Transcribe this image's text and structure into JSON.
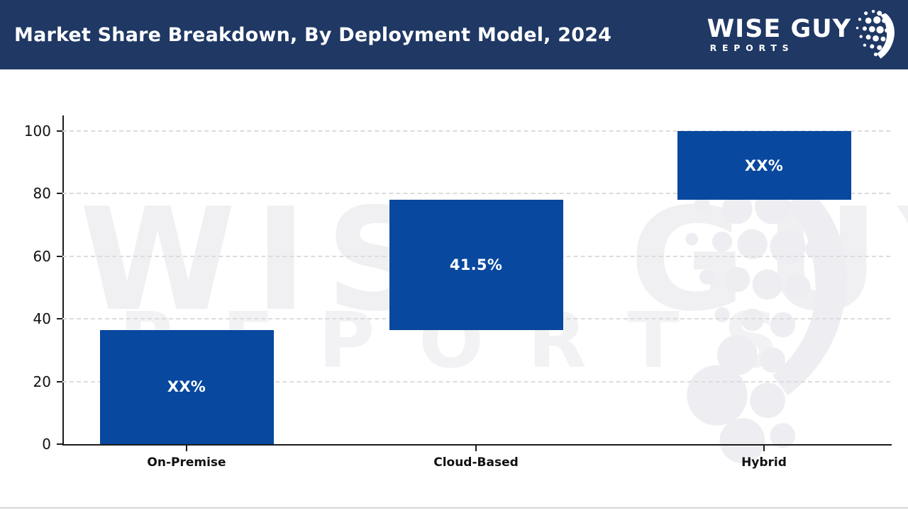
{
  "header": {
    "title": "Market Share Breakdown, By Deployment Model, 2024",
    "bg_color": "#1f3864",
    "brand": {
      "name": "WISE GUY",
      "sub": "REPORTS"
    }
  },
  "watermark": {
    "line1": "WISE GUY",
    "line2": "REPORTS"
  },
  "chart_data": {
    "type": "bar",
    "subtype": "waterfall",
    "title": "Market Share Breakdown, By Deployment Model, 2024",
    "categories": [
      "On-Premise",
      "Cloud-Based",
      "Hybrid"
    ],
    "series": [
      {
        "name": "Market share (%)",
        "segments": [
          {
            "category": "On-Premise",
            "start": 0,
            "end": 36.5,
            "label": "XX%"
          },
          {
            "category": "Cloud-Based",
            "start": 36.5,
            "end": 78,
            "label": "41.5%"
          },
          {
            "category": "Hybrid",
            "start": 78,
            "end": 100,
            "label": "XX%"
          }
        ]
      }
    ],
    "ylim": [
      0,
      105
    ],
    "yticks": [
      0,
      20,
      40,
      60,
      80,
      100
    ],
    "xlabel": "",
    "ylabel": "",
    "grid": "horizontal-dashed",
    "legend": "none",
    "bar_color": "#08489e",
    "bar_label_color": "#ffffff",
    "axis_color": "#1c1c1c",
    "gridline_color": "#dcdcdc"
  }
}
